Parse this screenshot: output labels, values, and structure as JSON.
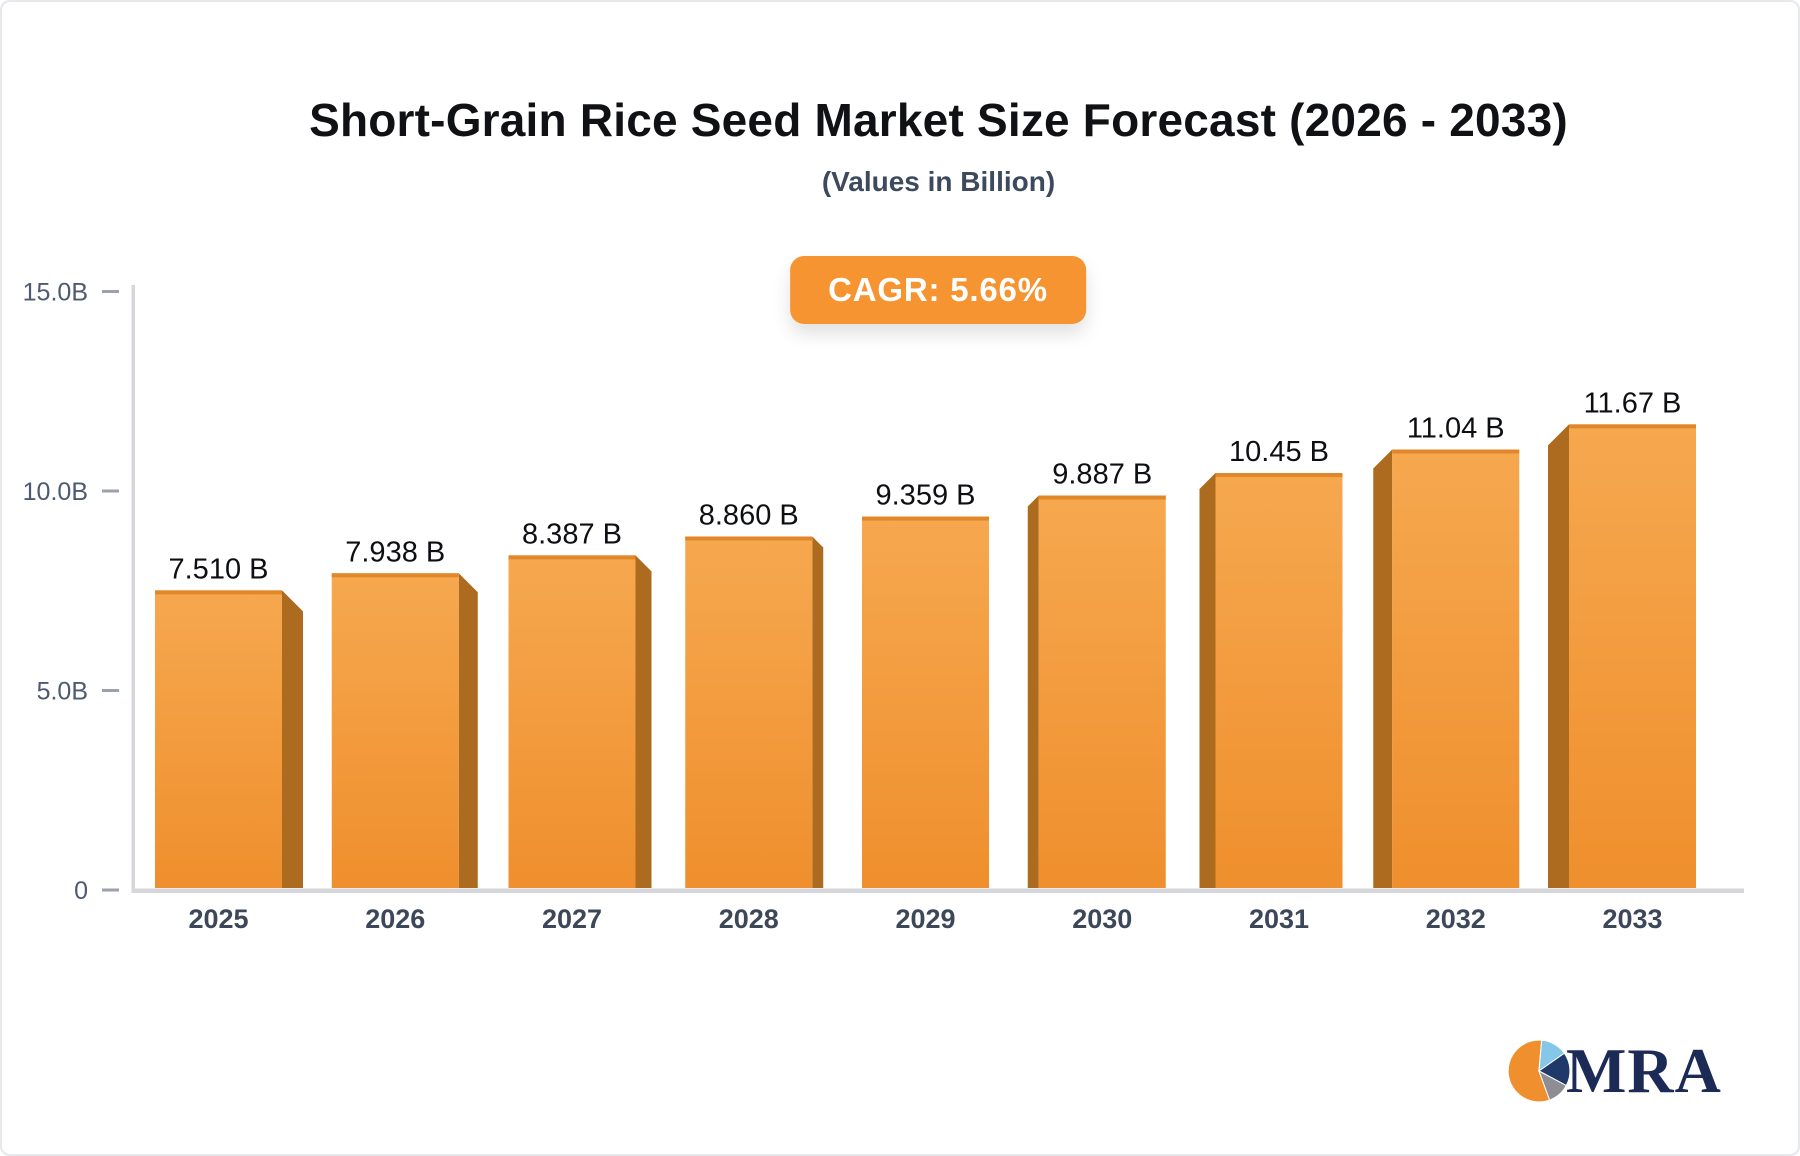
{
  "header": {
    "title": "Short-Grain Rice Seed Market Size Forecast (2026 - 2033)",
    "subtitle": "(Values in Billion)"
  },
  "badge": {
    "label": "CAGR: 5.66%"
  },
  "logo": {
    "text": "MRA",
    "pie_slices": [
      "orange",
      "light-blue",
      "navy",
      "gray"
    ]
  },
  "chart_data": {
    "type": "bar",
    "title": "Short-Grain Rice Seed Market Size Forecast (2026 - 2033)",
    "subtitle": "(Values in Billion)",
    "categories": [
      "2025",
      "2026",
      "2027",
      "2028",
      "2029",
      "2030",
      "2031",
      "2032",
      "2033"
    ],
    "values": [
      7.51,
      7.938,
      8.387,
      8.86,
      9.359,
      9.887,
      10.45,
      11.04,
      11.67
    ],
    "value_labels": [
      "7.510 B",
      "7.938 B",
      "8.387 B",
      "8.860 B",
      "9.359 B",
      "9.887 B",
      "10.45 B",
      "11.04 B",
      "11.67 B"
    ],
    "xlabel": "",
    "ylabel": "",
    "ylim": [
      0,
      15
    ],
    "yticks": [
      0,
      5,
      10,
      15
    ],
    "ytick_labels": [
      "0",
      "5.0B",
      "10.0B",
      "15.0B"
    ],
    "grid": false,
    "legend": false,
    "cagr": "5.66%",
    "colors": {
      "bar_face_top": "#F6A84F",
      "bar_face_bottom": "#EF8F2D",
      "bar_side": "#AC6B1E",
      "bar_top_edge": "#E1872A",
      "axis": "#D5D7DD",
      "tick_dash": "#9BA2AD",
      "ytick_text": "#4D5A70",
      "xtick_text": "#3C4759",
      "value_text": "#0D0F13",
      "badge_bg": "#F69432",
      "badge_text": "#FFFFFF"
    }
  }
}
